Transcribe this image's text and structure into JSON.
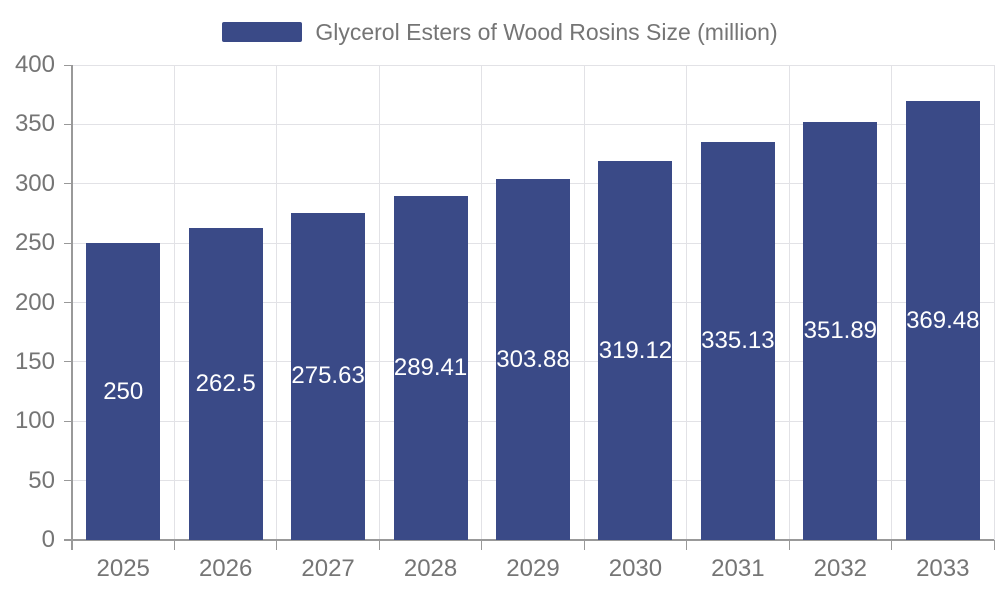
{
  "chart_data": {
    "type": "bar",
    "title": "Glycerol Esters of Wood Rosins Size (million)",
    "categories": [
      "2025",
      "2026",
      "2027",
      "2028",
      "2029",
      "2030",
      "2031",
      "2032",
      "2033"
    ],
    "values": [
      250,
      262.5,
      275.63,
      289.41,
      303.88,
      319.12,
      335.13,
      351.89,
      369.48
    ],
    "value_labels": [
      "250",
      "262.5",
      "275.63",
      "289.41",
      "303.88",
      "319.12",
      "335.13",
      "351.89",
      "369.48"
    ],
    "xlabel": "",
    "ylabel": "",
    "ylim": [
      0,
      400
    ],
    "yticks": [
      0,
      50,
      100,
      150,
      200,
      250,
      300,
      350,
      400
    ],
    "grid": "horizontal and vertical",
    "legend_position": "top-center",
    "bar_label_position": "inside-center",
    "colors": {
      "bar": "#3A4A87",
      "bar_label": "#FFFFFF",
      "axis_label": "#757575",
      "axis_line": "#999999",
      "gridline": "#E2E2E6",
      "legend_text": "#757575",
      "background": "#FFFFFF"
    }
  },
  "legend": {
    "label": "Glycerol Esters of Wood Rosins Size (million)"
  }
}
